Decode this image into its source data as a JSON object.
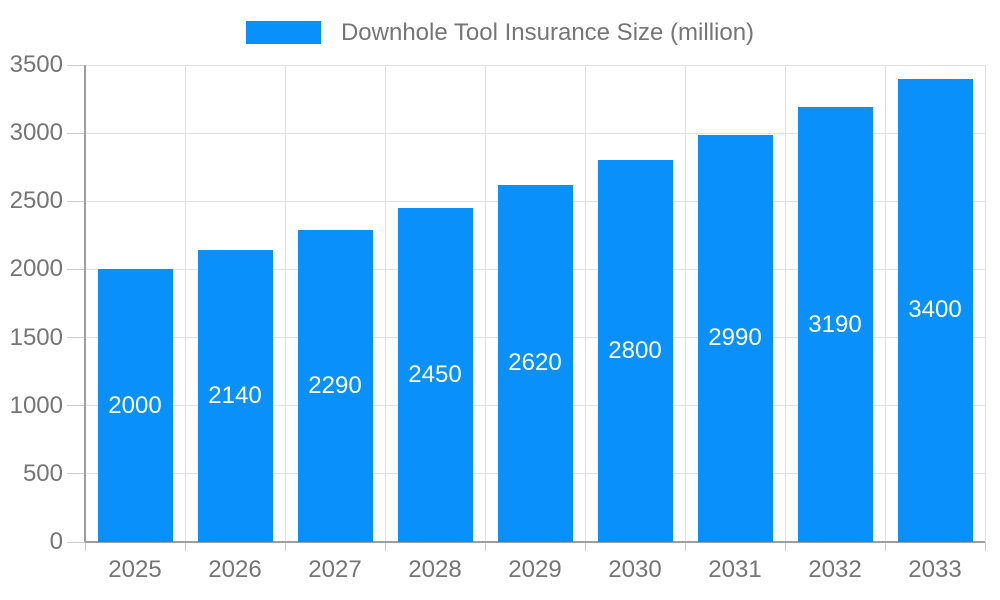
{
  "chart_data": {
    "type": "bar",
    "title": "Downhole Tool Insurance Size (million)",
    "legend": [
      "Downhole Tool Insurance Size (million)"
    ],
    "legend_position": "top-center",
    "categories": [
      "2025",
      "2026",
      "2027",
      "2028",
      "2029",
      "2030",
      "2031",
      "2032",
      "2033"
    ],
    "values": [
      2000,
      2140,
      2290,
      2450,
      2620,
      2800,
      2990,
      3190,
      3400
    ],
    "xlabel": "",
    "ylabel": "",
    "yticks": [
      0,
      500,
      1000,
      1500,
      2000,
      2500,
      3000,
      3500
    ],
    "ylim": [
      0,
      3500
    ],
    "grid": "horizontal-and-vertical",
    "value_labels": "centered-inside-bars",
    "colors": {
      "bar": "#0a90fa",
      "gridline": "#e2e2e2",
      "tick": "#cccccc",
      "axis": "#9e9e9e",
      "text": "#757575",
      "value_text": "#ffffff",
      "background": "#ffffff"
    }
  }
}
